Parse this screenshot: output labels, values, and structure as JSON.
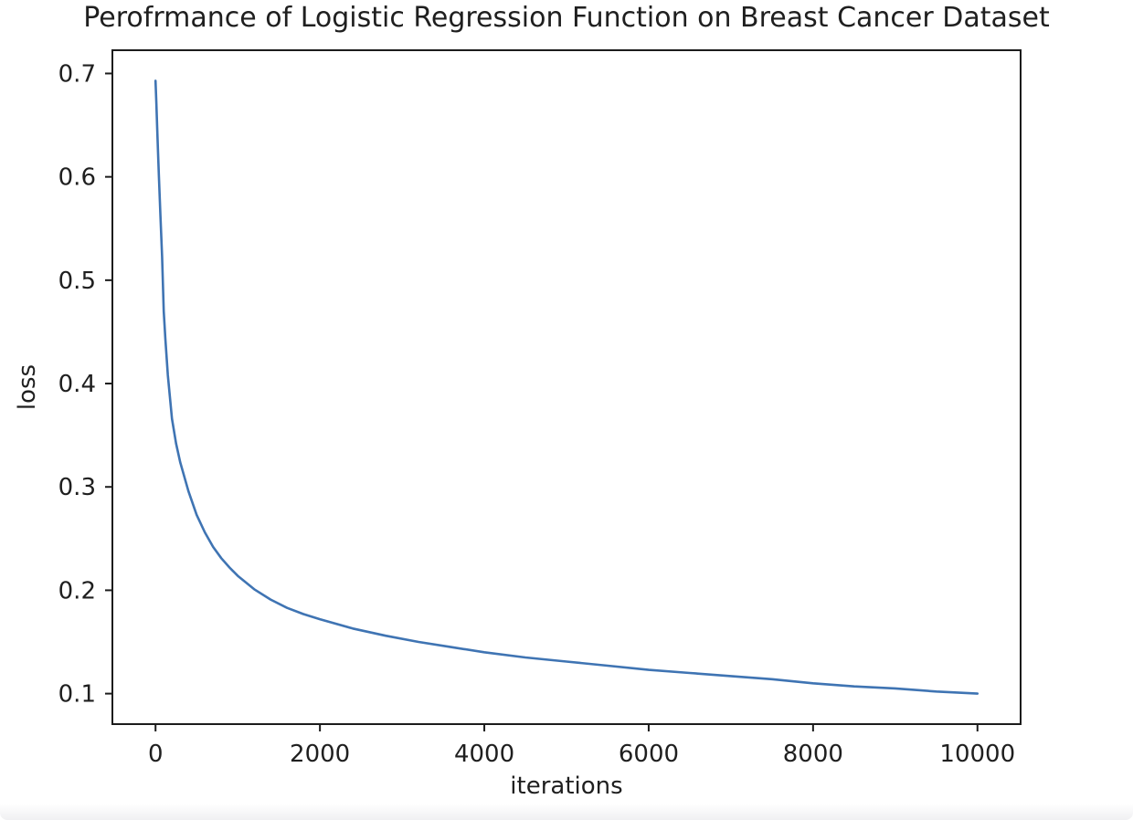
{
  "window": {
    "background": "#ffffff",
    "bottom_edge_color": "#f0f0f2"
  },
  "chart_data": {
    "type": "line",
    "title": "Perofrmance of Logistic Regression Function on Breast Cancer Dataset",
    "xlabel": "iterations",
    "ylabel": "loss",
    "grid": false,
    "legend": "none",
    "line_color": "#3f74b3",
    "axis_color": "#1c1c1c",
    "text_color": "#1f1f1f",
    "xlim": [
      -525,
      10525
    ],
    "ylim": [
      0.0705,
      0.7225
    ],
    "xticks": [
      0,
      2000,
      4000,
      6000,
      8000,
      10000
    ],
    "xtick_labels": [
      "0",
      "2000",
      "4000",
      "6000",
      "8000",
      "10000"
    ],
    "yticks": [
      0.1,
      0.2,
      0.3,
      0.4,
      0.5,
      0.6,
      0.7
    ],
    "ytick_labels": [
      "0.1",
      "0.2",
      "0.3",
      "0.4",
      "0.5",
      "0.6",
      "0.7"
    ],
    "series": [
      {
        "name": "loss",
        "points": [
          [
            0,
            0.693
          ],
          [
            10,
            0.672
          ],
          [
            20,
            0.648
          ],
          [
            30,
            0.625
          ],
          [
            40,
            0.603
          ],
          [
            60,
            0.562
          ],
          [
            80,
            0.523
          ],
          [
            100,
            0.47
          ],
          [
            120,
            0.443
          ],
          [
            150,
            0.408
          ],
          [
            200,
            0.366
          ],
          [
            250,
            0.342
          ],
          [
            300,
            0.324
          ],
          [
            400,
            0.296
          ],
          [
            500,
            0.273
          ],
          [
            600,
            0.256
          ],
          [
            700,
            0.242
          ],
          [
            800,
            0.231
          ],
          [
            900,
            0.222
          ],
          [
            1000,
            0.214
          ],
          [
            1200,
            0.201
          ],
          [
            1400,
            0.191
          ],
          [
            1600,
            0.183
          ],
          [
            1800,
            0.177
          ],
          [
            2000,
            0.172
          ],
          [
            2400,
            0.163
          ],
          [
            2800,
            0.156
          ],
          [
            3200,
            0.15
          ],
          [
            3600,
            0.145
          ],
          [
            4000,
            0.14
          ],
          [
            4500,
            0.135
          ],
          [
            5000,
            0.131
          ],
          [
            5500,
            0.127
          ],
          [
            6000,
            0.123
          ],
          [
            6500,
            0.12
          ],
          [
            7000,
            0.117
          ],
          [
            7500,
            0.114
          ],
          [
            8000,
            0.11
          ],
          [
            8500,
            0.107
          ],
          [
            9000,
            0.105
          ],
          [
            9500,
            0.102
          ],
          [
            10000,
            0.1
          ]
        ]
      }
    ]
  }
}
